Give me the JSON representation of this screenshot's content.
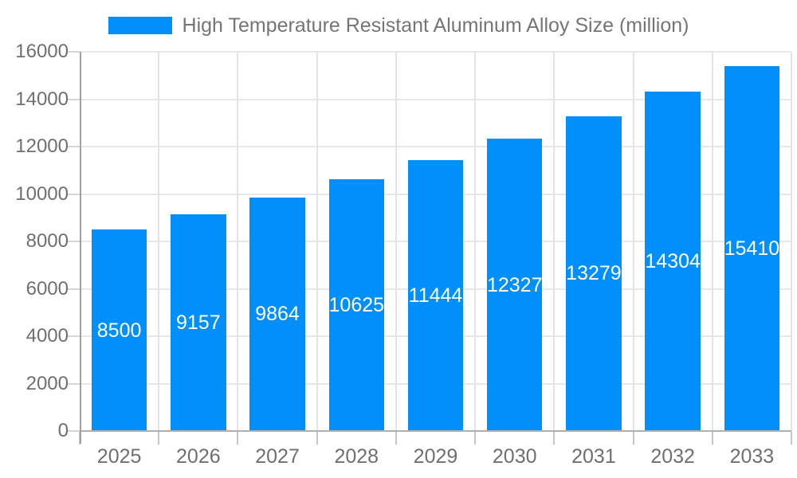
{
  "legend": {
    "label": "High Temperature Resistant Aluminum Alloy Size (million)"
  },
  "chart_data": {
    "type": "bar",
    "title": "High Temperature Resistant Aluminum Alloy Size (million)",
    "categories": [
      "2025",
      "2026",
      "2027",
      "2028",
      "2029",
      "2030",
      "2031",
      "2032",
      "2033"
    ],
    "values": [
      8500,
      9157,
      9864,
      10625,
      11444,
      12327,
      13279,
      14304,
      15410
    ],
    "xlabel": "",
    "ylabel": "",
    "ylim": [
      0,
      16000
    ],
    "yticks": [
      0,
      2000,
      4000,
      6000,
      8000,
      10000,
      12000,
      14000,
      16000
    ],
    "grid": true,
    "legend_position": "top-center",
    "value_labels": "inside-center-white",
    "colors": {
      "bar": "#008FFB",
      "value_label": "#FFFFFF",
      "axis_text": "#6F6F6F",
      "legend_text": "#757575",
      "gridline": "#E7E7E7",
      "axis_line": "#A0A0A0",
      "background": "#FFFFFF"
    }
  }
}
